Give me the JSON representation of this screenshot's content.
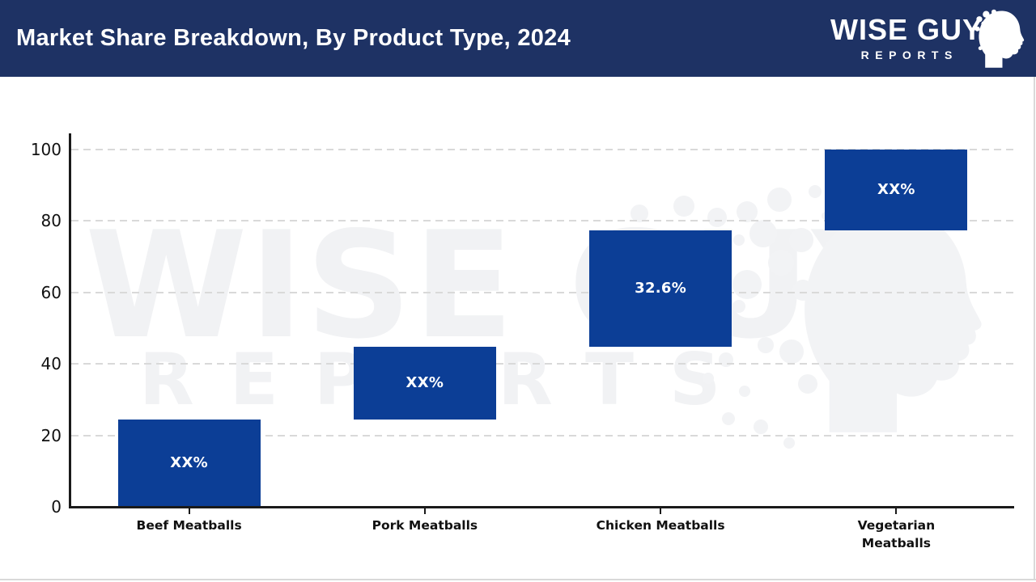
{
  "header": {
    "title": "Market Share Breakdown, By Product Type, 2024",
    "logo": {
      "name_line": "WISE GUY",
      "sub_line": "REPORTS",
      "head_icon": "face-profile-dots-icon"
    }
  },
  "watermark": {
    "text_primary": "WISE GUY",
    "text_secondary": "REPORTS",
    "head_icon": "face-profile-dots-watermark"
  },
  "colors": {
    "header_bg": "#1e3264",
    "bar": "#0c3e96",
    "bar_label": "#ffffff",
    "grid": "#d9d9d9",
    "axis": "#1a1a1a",
    "watermark": "#f1f2f4"
  },
  "chart_data": {
    "type": "bar",
    "subtype": "waterfall",
    "title": "Market Share Breakdown, By Product Type, 2024",
    "categories": [
      "Beef Meatballs",
      "Pork Meatballs",
      "Chicken Meatballs",
      "Vegetarian Meatballs"
    ],
    "tick_labels": [
      "Beef Meatballs",
      "Pork Meatballs",
      "Chicken Meatballs",
      "Vegetarian\nMeatballs"
    ],
    "series": [
      {
        "name": "Market Share (%)",
        "segments": [
          {
            "category": "Beef Meatballs",
            "start": 0,
            "end": 24.5,
            "label": "XX%"
          },
          {
            "category": "Pork Meatballs",
            "start": 24.5,
            "end": 44.8,
            "label": "XX%"
          },
          {
            "category": "Chicken Meatballs",
            "start": 44.8,
            "end": 77.4,
            "label": "32.6%"
          },
          {
            "category": "Vegetarian Meatballs",
            "start": 77.4,
            "end": 100,
            "label": "XX%"
          }
        ]
      }
    ],
    "yticks": [
      0,
      20,
      40,
      60,
      80,
      100
    ],
    "ylim": [
      0,
      104.5
    ],
    "xlabel": "",
    "ylabel": "",
    "grid": "horizontal-dashed",
    "legend": "none"
  }
}
